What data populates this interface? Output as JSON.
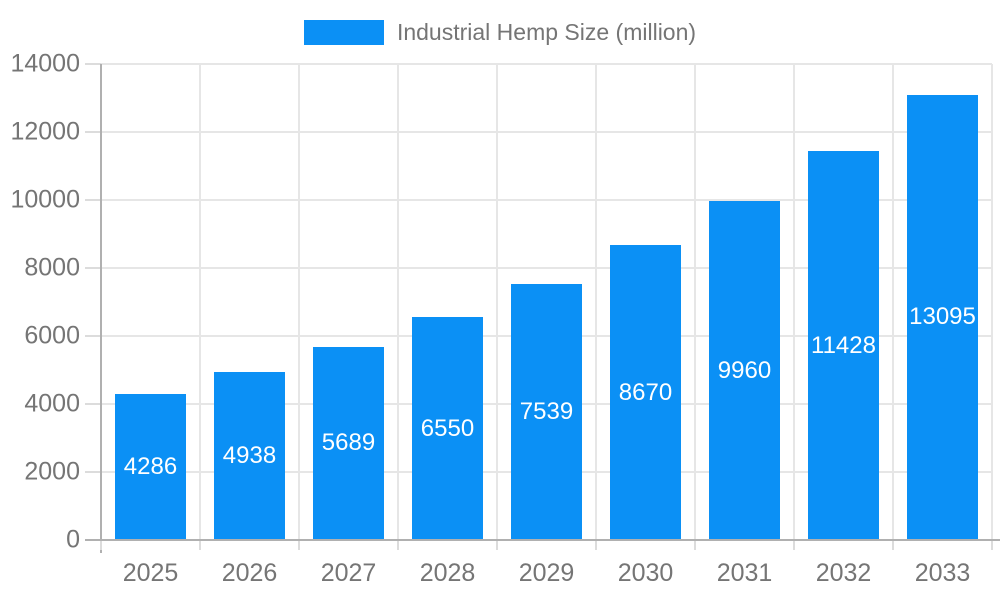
{
  "legend": {
    "label": "Industrial Hemp Size (million)"
  },
  "chart_data": {
    "type": "bar",
    "title": "Industrial Hemp Size (million)",
    "series_name": "Industrial Hemp Size (million)",
    "categories": [
      "2025",
      "2026",
      "2027",
      "2028",
      "2029",
      "2030",
      "2031",
      "2032",
      "2033"
    ],
    "values": [
      4286,
      4938,
      5689,
      6550,
      7539,
      8670,
      9960,
      11428,
      13095
    ],
    "value_labels": [
      "4286",
      "4938",
      "5689",
      "6550",
      "7539",
      "8670",
      "9960",
      "11428",
      "13095"
    ],
    "xlabel": "",
    "ylabel": "",
    "ylim": [
      0,
      14000
    ],
    "ytick_step": 2000,
    "yticks": [
      "0",
      "2000",
      "4000",
      "6000",
      "8000",
      "10000",
      "12000",
      "14000"
    ],
    "grid": true,
    "legend_position": "top",
    "colors": {
      "bar": "#0b90f5",
      "axis_text": "#757575",
      "value_label_text": "#ffffff",
      "gridline": "#e6e6e6",
      "axis_line": "#b0b0b0",
      "tick": "#dcdcdc"
    }
  }
}
